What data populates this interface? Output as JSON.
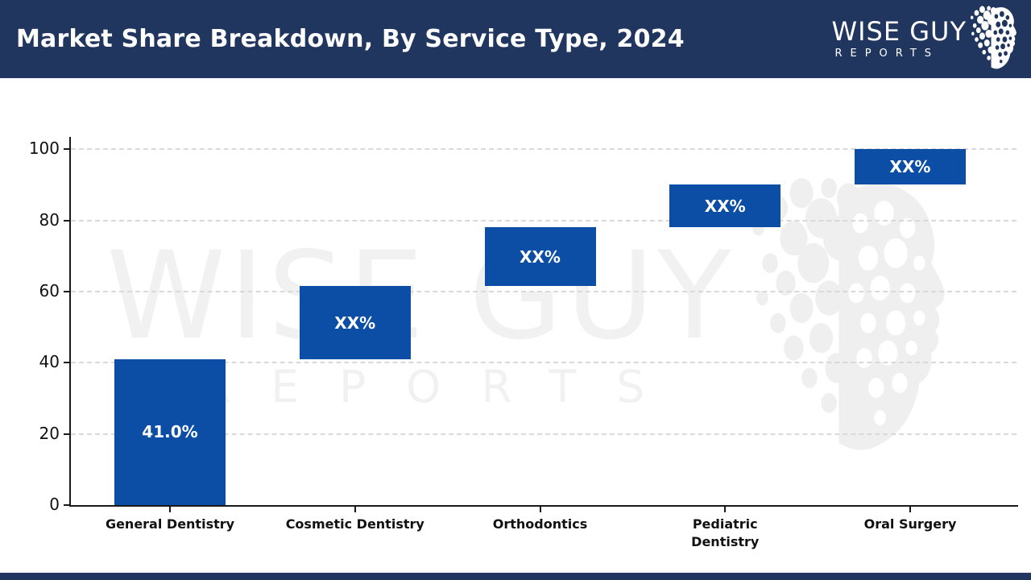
{
  "header": {
    "title": "Market Share Breakdown, By Service Type, 2024",
    "logo": {
      "name": "WISE GUY",
      "tagline": "REPORTS"
    }
  },
  "watermark": {
    "line1": "WISE GUY",
    "line2": "REPORTS"
  },
  "colors": {
    "header_bg": "#21365f",
    "bar": "#0c4da6",
    "grid": "#d9d9d9",
    "watermark": "#f1f1f1",
    "value_label": "#ffffff"
  },
  "chart_data": {
    "type": "bar",
    "subtype": "waterfall",
    "title": "Market Share Breakdown, By Service Type, 2024",
    "categories": [
      "General Dentistry",
      "Cosmetic Dentistry",
      "Orthodontics",
      "Pediatric Dentistry",
      "Oral Surgery"
    ],
    "x_labels": [
      "General Dentistry",
      "Cosmetic Dentistry",
      "Orthodontics",
      "Pediatric\nDentistry",
      "Oral Surgery"
    ],
    "segments": [
      {
        "category": "General Dentistry",
        "start": 0,
        "end": 41.0,
        "value_label": "41.0%"
      },
      {
        "category": "Cosmetic Dentistry",
        "start": 41.0,
        "end": 61.5,
        "value_label": "XX%"
      },
      {
        "category": "Orthodontics",
        "start": 61.5,
        "end": 78.0,
        "value_label": "XX%"
      },
      {
        "category": "Pediatric Dentistry",
        "start": 78.0,
        "end": 90.0,
        "value_label": "XX%"
      },
      {
        "category": "Oral Surgery",
        "start": 90.0,
        "end": 100.0,
        "value_label": "XX%"
      }
    ],
    "y_ticks": [
      0,
      20,
      40,
      60,
      80,
      100
    ],
    "ylim": [
      0,
      104
    ],
    "xlabel": "",
    "ylabel": "",
    "grid": true,
    "legend": false,
    "bar_color": "#0c4da6"
  }
}
